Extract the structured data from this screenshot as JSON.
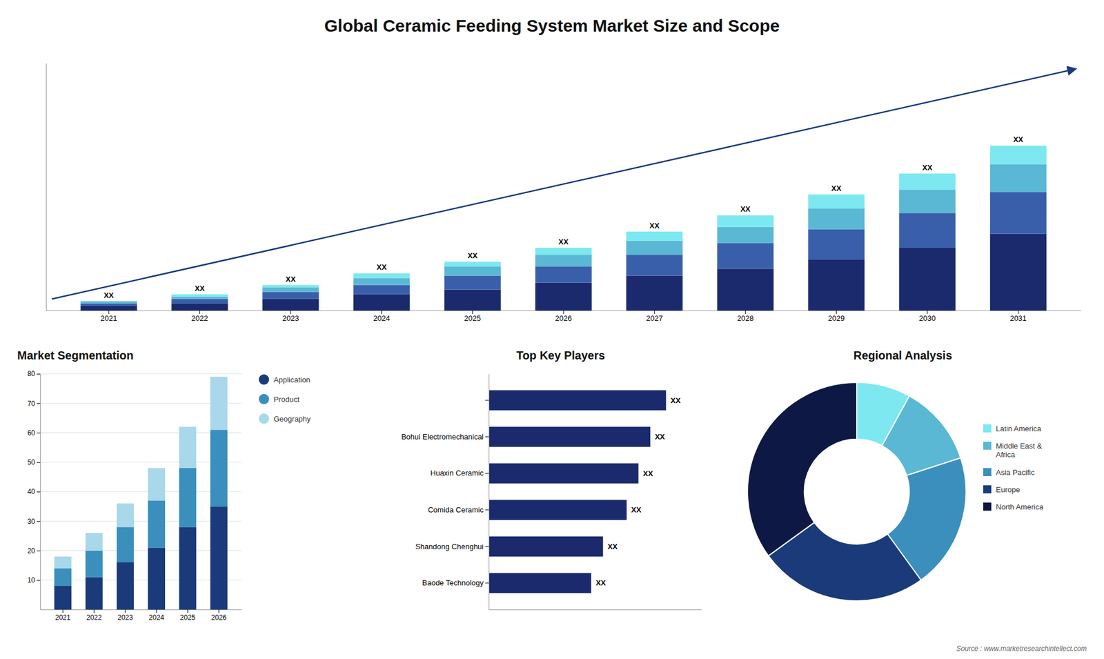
{
  "chart_data": [
    {
      "type": "bar",
      "stacked": true,
      "title": "Global Ceramic Feeding System Market Size and Scope",
      "annotations": [
        "Source : www.marketresearchintellect.com"
      ],
      "categories": [
        "2021",
        "2022",
        "2023",
        "2024",
        "2025",
        "2026",
        "2027",
        "2028",
        "2029",
        "2030",
        "2031"
      ],
      "series": [
        {
          "color": "#1a2a6c",
          "values": [
            2,
            3,
            5,
            7,
            9,
            12,
            15,
            18,
            22,
            27,
            33
          ]
        },
        {
          "color": "#3a5faa",
          "values": [
            1,
            2,
            3,
            4,
            6,
            7,
            9,
            11,
            13,
            15,
            18
          ]
        },
        {
          "color": "#5ab8d4",
          "values": [
            1,
            1,
            2,
            3,
            4,
            5,
            6,
            7,
            9,
            10,
            12
          ]
        },
        {
          "color": "#7de8f0",
          "values": [
            0,
            1,
            1,
            2,
            2,
            3,
            4,
            5,
            6,
            7,
            8
          ]
        }
      ],
      "value_labels": [
        "XX",
        "XX",
        "XX",
        "XX",
        "XX",
        "XX",
        "XX",
        "XX",
        "XX",
        "XX",
        "XX"
      ],
      "ylim": [
        0,
        106.5
      ],
      "tick_labels": "x"
    },
    {
      "type": "bar",
      "stacked": true,
      "title": "Market Segmentation",
      "categories": [
        "2021",
        "2022",
        "2023",
        "2024",
        "2025",
        "2026"
      ],
      "series": [
        {
          "name": "Application",
          "color": "#1a3a7a",
          "values": [
            8,
            11,
            16,
            21,
            28,
            35
          ]
        },
        {
          "name": "Product",
          "color": "#3a8fbc",
          "values": [
            6,
            9,
            12,
            16,
            20,
            26
          ]
        },
        {
          "name": "Geography",
          "color": "#a8d8ea",
          "values": [
            4,
            6,
            8,
            11,
            14,
            18
          ]
        }
      ],
      "ylim": [
        0,
        80
      ],
      "yticks": [
        10,
        20,
        30,
        40,
        50,
        60,
        70,
        80
      ],
      "grid": true,
      "legend": "right"
    },
    {
      "type": "bar",
      "orientation": "horizontal",
      "title": "Top Key Players",
      "categories": [
        null,
        "Bohui Electromechanical",
        "Huaxin Ceramic",
        "Comida Ceramic",
        "Shandong Chenghui",
        "Baode Technology"
      ],
      "values": [
        90,
        82,
        76,
        70,
        58,
        52
      ],
      "value_labels": [
        "XX",
        "XX",
        "XX",
        "XX",
        "XX",
        "XX"
      ],
      "color": "#1a2a6c",
      "xlim": [
        0,
        108
      ],
      "tick_labels": "y"
    },
    {
      "type": "pie",
      "title": "Regional Analysis",
      "categories": [
        "Latin America",
        "Middle East &\nAfrica",
        "Asia Pacific",
        "Europe",
        "North America"
      ],
      "values": [
        8,
        12,
        20,
        25,
        35
      ],
      "colors": [
        "#7de8f0",
        "#5ab8d4",
        "#3a8fbc",
        "#1a3a7a",
        "#0d1844"
      ],
      "legend": "right"
    }
  ]
}
